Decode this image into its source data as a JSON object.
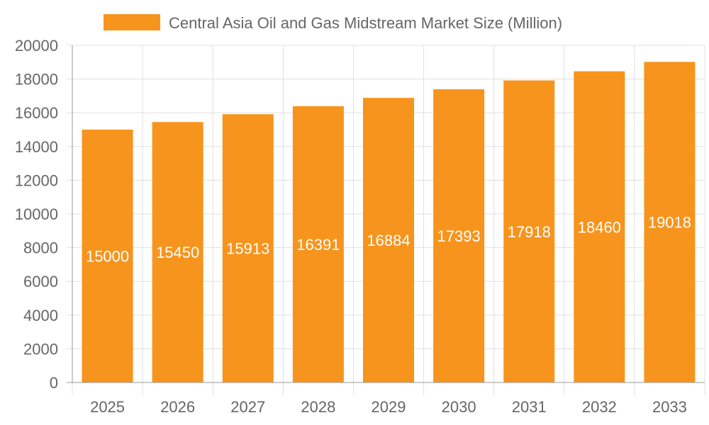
{
  "chart_data": {
    "type": "bar",
    "title": "",
    "xlabel": "",
    "ylabel": "",
    "categories": [
      "2025",
      "2026",
      "2027",
      "2028",
      "2029",
      "2030",
      "2031",
      "2032",
      "2033"
    ],
    "series": [
      {
        "name": "Central Asia Oil and Gas Midstream Market Size (Million)",
        "values": [
          15000,
          15450,
          15913,
          16391,
          16884,
          17393,
          17918,
          18460,
          19018
        ],
        "color": "#F7941D"
      }
    ],
    "ylim": [
      0,
      20000
    ],
    "yticks": [
      0,
      2000,
      4000,
      6000,
      8000,
      10000,
      12000,
      14000,
      16000,
      18000,
      20000
    ],
    "grid": true,
    "legend_position": "top",
    "data_labels": true,
    "colors": {
      "grid": "#e0e0e0",
      "axis": "#999999",
      "text": "#666666",
      "label": "#ffffff"
    }
  }
}
